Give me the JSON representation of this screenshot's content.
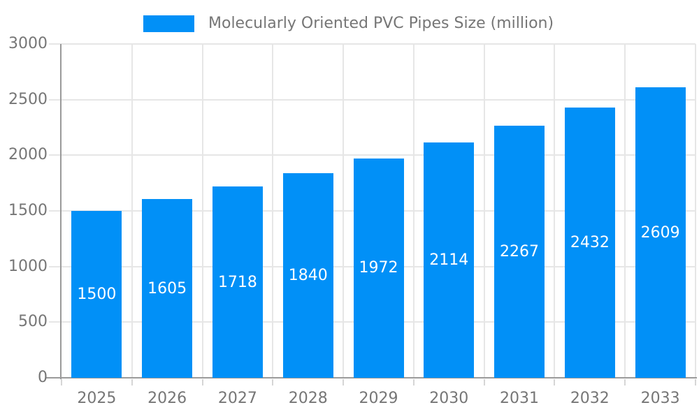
{
  "chart_data": {
    "type": "bar",
    "title": "Molecularly Oriented PVC Pipes Size (million)",
    "legend_position": "top",
    "legend_entries": [
      "Molecularly Oriented PVC Pipes Size (million)"
    ],
    "categories": [
      "2025",
      "2026",
      "2027",
      "2028",
      "2029",
      "2030",
      "2031",
      "2032",
      "2033"
    ],
    "values": [
      1500,
      1605,
      1718,
      1840,
      1972,
      2114,
      2267,
      2432,
      2609
    ],
    "bar_value_labels": [
      "1500",
      "1605",
      "1718",
      "1840",
      "1972",
      "2114",
      "2267",
      "2432",
      "2609"
    ],
    "xlabel": "",
    "ylabel": "",
    "ylim": [
      0,
      3000
    ],
    "y_ticks": [
      0,
      500,
      1000,
      1500,
      2000,
      2500,
      3000
    ],
    "grid": true
  },
  "colors": {
    "bar": "#0190F7",
    "grid": "#E6E6E6",
    "x_tick": "#D6D6D6",
    "axis": "#9A9A9A",
    "tick_label": "#767676",
    "bar_label": "#FFFFFF",
    "background": "#FFFFFF"
  }
}
